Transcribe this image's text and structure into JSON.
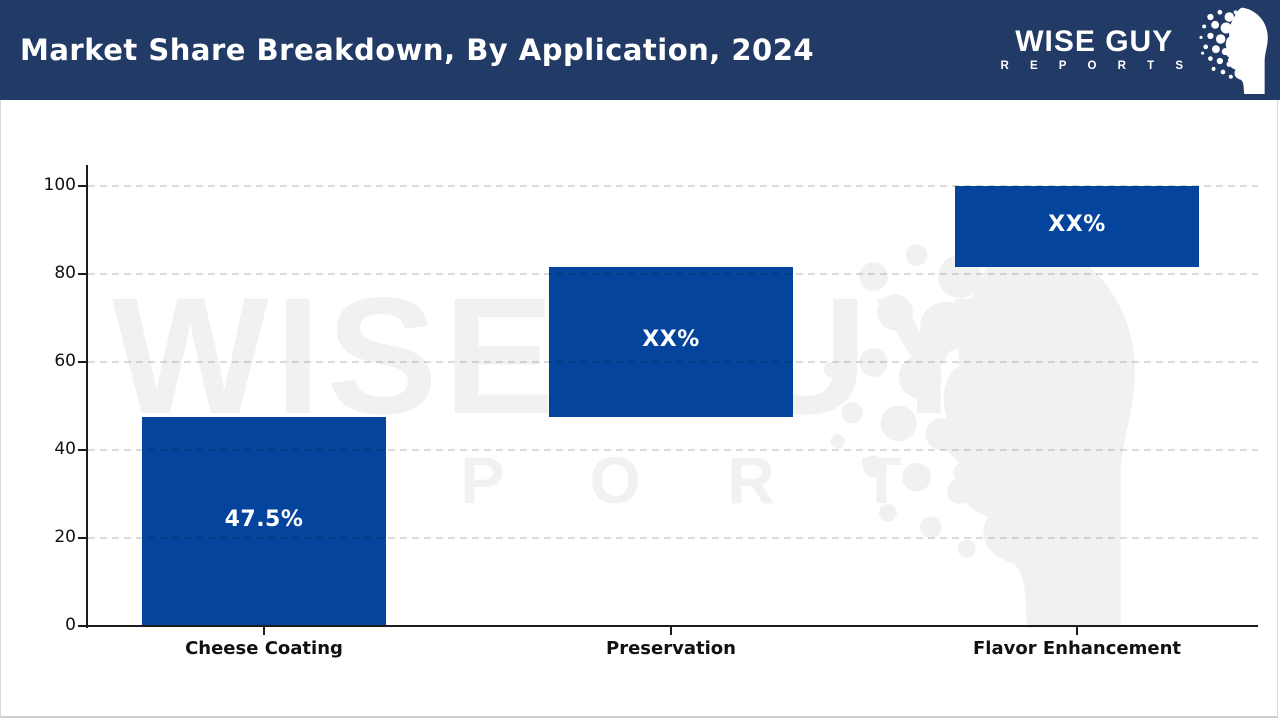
{
  "header": {
    "title": "Market Share Breakdown, By Application, 2024",
    "logo": {
      "brand": "WISE GUY",
      "sub": "R E P O R T S"
    }
  },
  "watermark": {
    "brand": "WISE GUY",
    "sub": "R E P O R T S"
  },
  "colors": {
    "header_bg": "#213a66",
    "bar_fill": "#04449c",
    "value_label": "#ffffff",
    "axis": "#1c1c1c",
    "gridline": "rgba(0,0,0,0.14)",
    "watermark": "#f1f1f2",
    "text": "#111111",
    "logo_fill": "#ffffff"
  },
  "chart_data": {
    "type": "bar",
    "subtype": "waterfall",
    "title": "Market Share Breakdown, By Application, 2024",
    "categories": [
      "Cheese Coating",
      "Preservation",
      "Flavor Enhancement"
    ],
    "segments": [
      {
        "category": "Cheese Coating",
        "start": 0,
        "end": 47.5,
        "value": 47.5,
        "label": "47.5%"
      },
      {
        "category": "Preservation",
        "start": 47.5,
        "end": 81.5,
        "value": 34,
        "label": "XX%"
      },
      {
        "category": "Flavor Enhancement",
        "start": 81.5,
        "end": 100,
        "value": 18.5,
        "label": "XX%"
      }
    ],
    "ylim": [
      0,
      100
    ],
    "yticks": [
      0,
      20,
      40,
      60,
      80,
      100
    ],
    "xlabel": "",
    "ylabel": "",
    "grid": "horizontal-dashed",
    "legend": "none",
    "bar_color": "#04449c"
  }
}
